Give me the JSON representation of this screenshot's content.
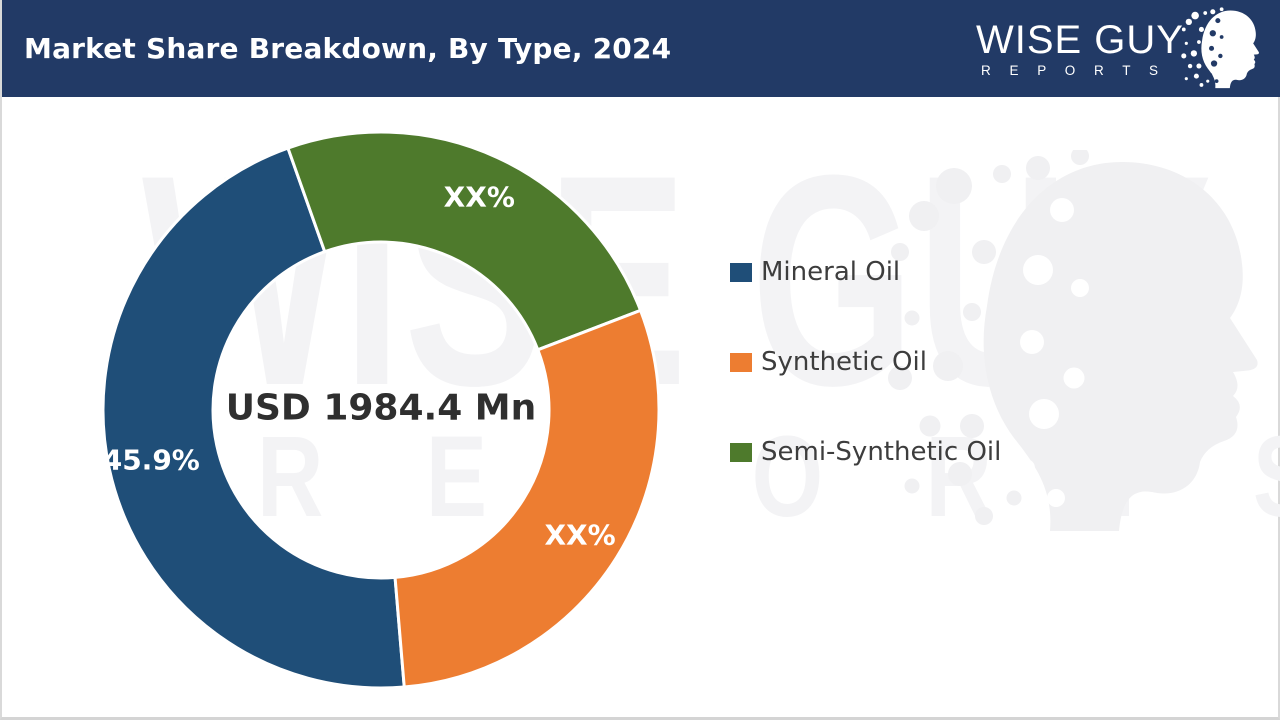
{
  "header": {
    "title": "Market Share Breakdown, By Type, 2024",
    "logo": {
      "name": "WISE GUY",
      "subtitle": "R E P O R T S"
    }
  },
  "watermark": {
    "line1": "WISE GUY",
    "line2": "R E P O R T S"
  },
  "chart_data": {
    "type": "pie",
    "subtype": "donut",
    "title": "Market Share Breakdown, By Type, 2024",
    "center_label": "USD 1984.4 Mn",
    "start_angle_deg": 175.2,
    "legend_position": "right",
    "slices": [
      {
        "name": "Mineral Oil",
        "value_pct": 45.9,
        "label": "45.9%",
        "color": "#1F4E78"
      },
      {
        "name": "Semi-Synthetic Oil",
        "value_pct": 24.6,
        "label": "XX%",
        "color": "#4E7A2C"
      },
      {
        "name": "Synthetic Oil",
        "value_pct": 29.5,
        "label": "XX%",
        "color": "#ED7D31"
      }
    ],
    "legend": [
      {
        "label": "Mineral Oil",
        "color": "#1F4E78"
      },
      {
        "label": "Synthetic Oil",
        "color": "#ED7D31"
      },
      {
        "label": "Semi-Synthetic Oil",
        "color": "#4E7A2C"
      }
    ]
  },
  "colors": {
    "header_bg": "#223A66",
    "accent_blue": "#1F4E78",
    "accent_orange": "#ED7D31",
    "accent_green": "#4E7A2C",
    "watermark": "#f3f3f5"
  }
}
